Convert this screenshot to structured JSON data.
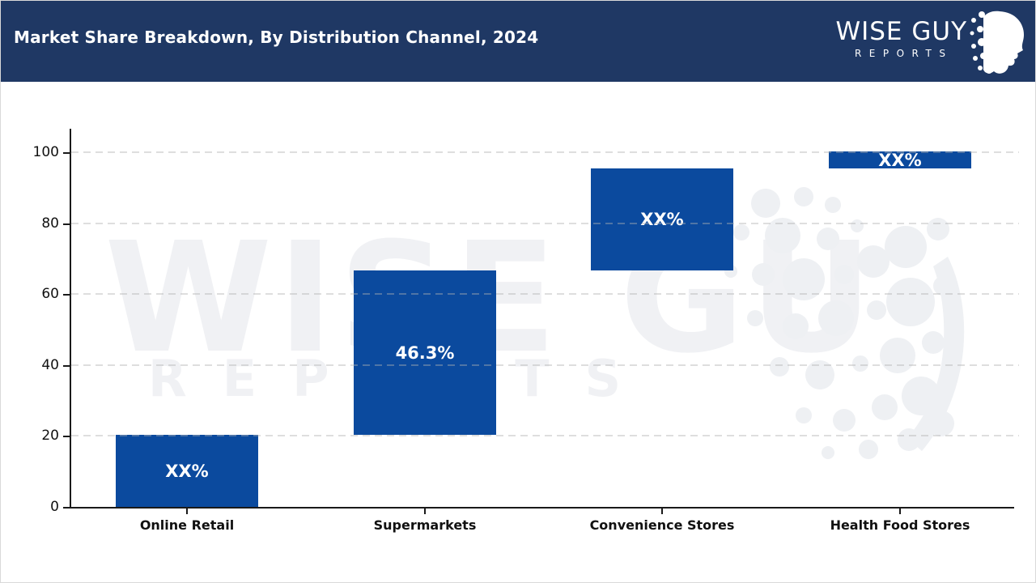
{
  "header": {
    "title": "Market Share Breakdown, By Distribution Channel, 2024",
    "logo": {
      "line1": "WISE GUY",
      "line2": "REPORTS"
    }
  },
  "watermark": {
    "line1": "WISE GU",
    "line2": "REPORTS"
  },
  "colors": {
    "header_bg": "#1f3864",
    "bar": "#0b4a9e",
    "axis": "#1a1a1a",
    "text": "#111111",
    "grid_rgba": "rgba(176,176,176,0.42)",
    "bar_label": "#ffffff",
    "watermark": "#f0f1f4"
  },
  "chart_data": {
    "type": "bar",
    "subtype": "waterfall-floating-bars",
    "title": "Market Share Breakdown, By Distribution Channel, 2024",
    "categories": [
      "Online Retail",
      "Supermarkets",
      "Convenience Stores",
      "Health Food Stores"
    ],
    "segments": [
      {
        "category": "Online Retail",
        "start": 0,
        "end": 20.4,
        "label": "XX%"
      },
      {
        "category": "Supermarkets",
        "start": 20.4,
        "end": 66.7,
        "label": "46.3%"
      },
      {
        "category": "Convenience Stores",
        "start": 66.7,
        "end": 95.4,
        "label": "XX%"
      },
      {
        "category": "Health Food Stores",
        "start": 95.4,
        "end": 100.2,
        "label": "XX%"
      }
    ],
    "y_ticks": [
      0,
      20,
      40,
      60,
      80,
      100
    ],
    "ylim": [
      0,
      106
    ],
    "xlabel": "",
    "ylabel": "",
    "legend": "none",
    "grid": "horizontal-dashed-above-bars"
  }
}
